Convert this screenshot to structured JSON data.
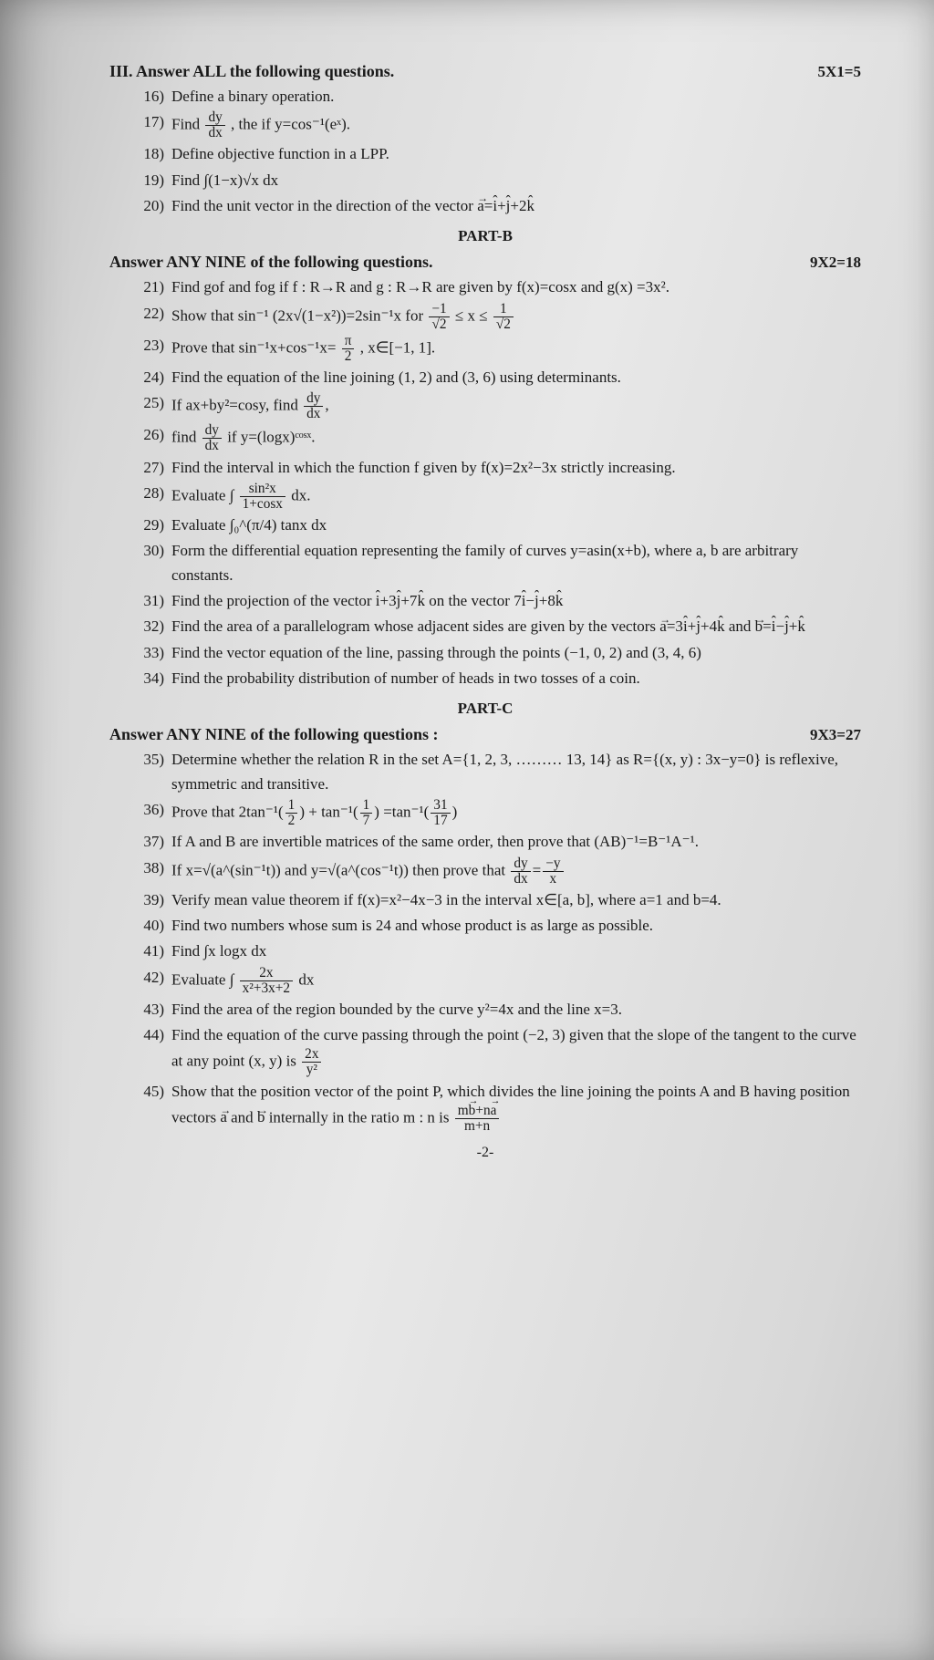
{
  "page": {
    "number_label": "-2-",
    "bg_gradient": [
      "#c0c0c0",
      "#e8e8e8",
      "#c8c8c8"
    ],
    "text_color": "#1a1a1a"
  },
  "sections": {
    "iii_head": "III. Answer ALL the following questions.",
    "iii_marks": "5X1=5",
    "partB_label": "PART-B",
    "partB_instruct": "Answer ANY NINE of the following questions.",
    "partB_marks": "9X2=18",
    "partC_label": "PART-C",
    "partC_instruct": "Answer ANY NINE of the following questions :",
    "partC_marks": "9X3=27"
  },
  "q16": {
    "n": "16)",
    "t": "Define a binary operation."
  },
  "q17": {
    "n": "17)",
    "pre": "Find ",
    "post": ", the if y=cos⁻¹(eˣ)."
  },
  "q18": {
    "n": "18)",
    "t": "Define objective function in a LPP."
  },
  "q19": {
    "n": "19)",
    "t": "Find ∫(1−x)√x dx"
  },
  "q20": {
    "n": "20)",
    "t_pre": "Find the unit vector in the direction of the vector "
  },
  "q21": {
    "n": "21)",
    "t": "Find gof and fog if f : R→R and g : R→R are given by f(x)=cosx and g(x) =3x²."
  },
  "q22": {
    "n": "22)",
    "t_pre": "Show that sin⁻¹ (2x√(1−x²))=2sin⁻¹x for "
  },
  "q23": {
    "n": "23)",
    "t_pre": "Prove that sin⁻¹x+cos⁻¹x=",
    "t_post": ", x∈[−1, 1]."
  },
  "q24": {
    "n": "24)",
    "t": "Find the equation of the line joining (1, 2) and (3, 6) using determinants."
  },
  "q25": {
    "n": "25)",
    "t_pre": "If ax+by²=cosy, find "
  },
  "q26": {
    "n": "26)",
    "t_pre": "find ",
    "t_post": " if y=(logx)ᶜᵒˢˣ."
  },
  "q27": {
    "n": "27)",
    "t": "Find the interval in which the function f given by f(x)=2x²−3x strictly increasing."
  },
  "q28": {
    "n": "28)",
    "t_pre": "Evaluate ∫",
    "t_post": " dx."
  },
  "q29": {
    "n": "29)",
    "t": "Evaluate ∫₀^(π/4) tanx dx"
  },
  "q30": {
    "n": "30)",
    "t": "Form the differential equation representing the family of curves y=asin(x+b), where a, b are arbitrary constants."
  },
  "q31": {
    "n": "31)",
    "t_pre": "Find the projection of the vector ",
    "t_mid": " on the vector "
  },
  "q32": {
    "n": "32)",
    "t_pre": "Find the area of a parallelogram whose adjacent sides are given by the vectors ",
    "t_mid": " and "
  },
  "q33": {
    "n": "33)",
    "t": "Find the vector equation of the line, passing through the points (−1, 0, 2) and (3, 4, 6)"
  },
  "q34": {
    "n": "34)",
    "t": "Find the probability distribution of number of heads in two tosses of a coin."
  },
  "q35": {
    "n": "35)",
    "t": "Determine whether the relation R in the set A={1, 2, 3, ……… 13, 14} as R={(x, y) : 3x−y=0} is reflexive, symmetric and transitive."
  },
  "q36": {
    "n": "36)",
    "t_pre": "Prove that 2tan⁻¹",
    "t_plus": " + tan⁻¹",
    "t_eq": "=tan⁻¹"
  },
  "q37": {
    "n": "37)",
    "t": "If A and B are invertible matrices of the same order, then prove that (AB)⁻¹=B⁻¹A⁻¹."
  },
  "q38": {
    "n": "38)",
    "t_pre": "If x=√(a^(sin⁻¹t)) and y=√(a^(cos⁻¹t)) then prove that "
  },
  "q39": {
    "n": "39)",
    "t": "Verify mean value theorem if f(x)=x²−4x−3 in the interval x∈[a, b], where a=1 and b=4."
  },
  "q40": {
    "n": "40)",
    "t": "Find two numbers whose sum is 24 and whose product is as large as possible."
  },
  "q41": {
    "n": "41)",
    "t": "Find ∫x logx dx"
  },
  "q42": {
    "n": "42)",
    "t_pre": "Evaluate ∫",
    "t_post": " dx"
  },
  "q43": {
    "n": "43)",
    "t": "Find the area of the region bounded by the curve y²=4x and the line x=3."
  },
  "q44": {
    "n": "44)",
    "t_pre": "Find the equation of the curve passing through the point (−2, 3) given that the slope of the tangent to the curve at any point (x, y) is "
  },
  "q45": {
    "n": "45)",
    "t_pre": "Show that the position vector of the point P, which divides the line joining the points A and B having position vectors ",
    "t_mid": " and ",
    "t_post": " internally in the ratio m : n is "
  }
}
